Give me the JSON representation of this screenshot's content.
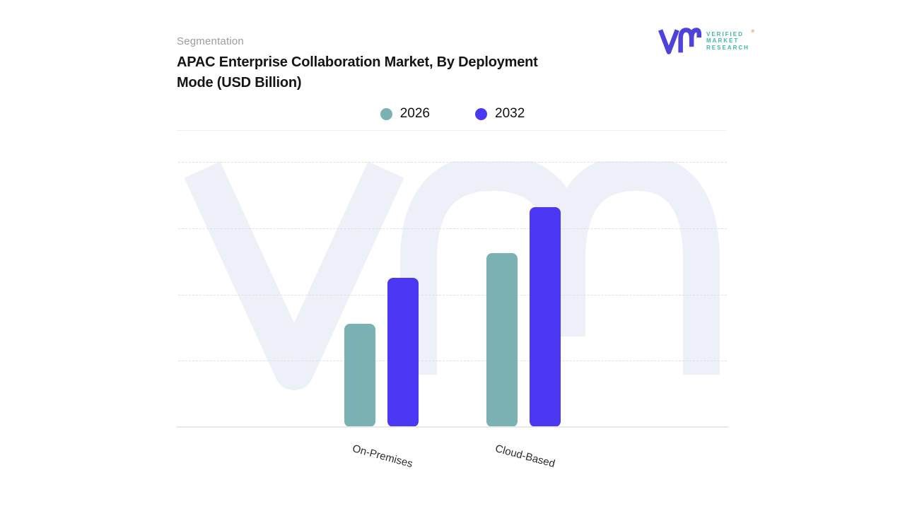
{
  "header": {
    "eyebrow": "Segmentation",
    "title": "APAC Enterprise Collaboration Market, By Deployment Mode (USD Billion)"
  },
  "logo": {
    "brand_lines": [
      "VERIFIED",
      "MARKET",
      "RESEARCH"
    ],
    "registered_mark": "®",
    "mark_color": "#4e42dc",
    "text_color": "#3cb9ac"
  },
  "chart_data": {
    "type": "bar",
    "title": "APAC Enterprise Collaboration Market, By Deployment Mode (USD Billion)",
    "categories": [
      "On-Premises",
      "Cloud-Based"
    ],
    "series": [
      {
        "name": "2026",
        "color": "#7ab1b3",
        "values": [
          1.56,
          2.62
        ]
      },
      {
        "name": "2032",
        "color": "#4a38f5",
        "values": [
          2.25,
          3.32
        ]
      }
    ],
    "ylabel": "",
    "xlabel": "",
    "ylim": [
      0,
      4
    ],
    "y_tick_labels_visible": false,
    "grid": "horizontal-dashed",
    "legend_position": "top-center",
    "x_label_rotation_deg": 15,
    "bar_corner_radius": 8,
    "watermark": "VMR logo, very light lavender",
    "watermark_color": "#eef0f9",
    "background": "#ffffff"
  }
}
